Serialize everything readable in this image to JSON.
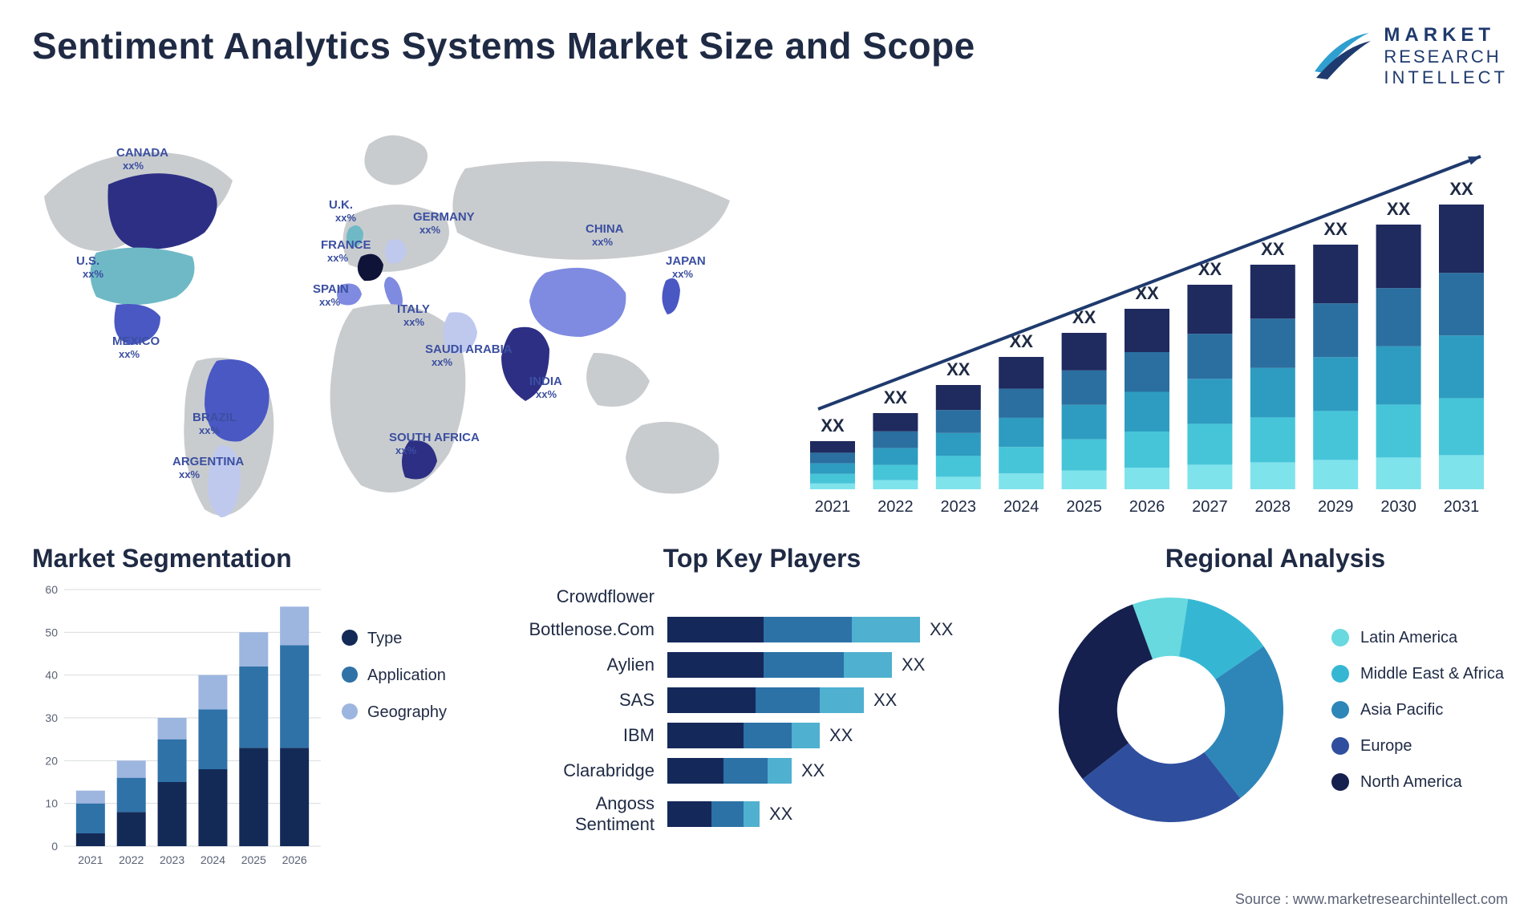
{
  "title": "Sentiment Analytics Systems Market Size and Scope",
  "brand": {
    "line1": "MARKET",
    "line2": "RESEARCH",
    "line3": "INTELLECT",
    "swoosh_top": "#2f9fd0",
    "swoosh_bot": "#1f3a6e"
  },
  "footer": "Source : www.marketresearchintellect.com",
  "colors": {
    "text": "#1f2a44",
    "map_label": "#3b4fa0"
  },
  "map": {
    "neutral_fill": "#c9cccf",
    "countries": [
      {
        "name": "CANADA",
        "sub": "xx%"
      },
      {
        "name": "U.S.",
        "sub": "xx%"
      },
      {
        "name": "MEXICO",
        "sub": "xx%"
      },
      {
        "name": "BRAZIL",
        "sub": "xx%"
      },
      {
        "name": "ARGENTINA",
        "sub": "xx%"
      },
      {
        "name": "U.K.",
        "sub": "xx%"
      },
      {
        "name": "FRANCE",
        "sub": "xx%"
      },
      {
        "name": "SPAIN",
        "sub": "xx%"
      },
      {
        "name": "GERMANY",
        "sub": "xx%"
      },
      {
        "name": "ITALY",
        "sub": "xx%"
      },
      {
        "name": "SAUDI ARABIA",
        "sub": "xx%"
      },
      {
        "name": "SOUTH AFRICA",
        "sub": "xx%"
      },
      {
        "name": "CHINA",
        "sub": "xx%"
      },
      {
        "name": "INDIA",
        "sub": "xx%"
      },
      {
        "name": "JAPAN",
        "sub": "xx%"
      }
    ],
    "highlight_colors": {
      "dark": "#2d2f85",
      "mid": "#4a58c4",
      "light": "#7f8be0",
      "teal": "#6fb9c6",
      "pale": "#bfc9ee"
    }
  },
  "growth_chart": {
    "type": "stacked-bar-with-trend",
    "years": [
      "2021",
      "2022",
      "2023",
      "2024",
      "2025",
      "2026",
      "2027",
      "2028",
      "2029",
      "2030",
      "2031"
    ],
    "value_label": "XX",
    "heights": [
      60,
      95,
      130,
      165,
      195,
      225,
      255,
      280,
      305,
      330,
      355
    ],
    "stack_colors": [
      "#7fe3ec",
      "#46c5d9",
      "#2e9cc0",
      "#2a6fa0",
      "#1f2a5f"
    ],
    "stack_props": [
      0.12,
      0.2,
      0.22,
      0.22,
      0.24
    ],
    "arrow_color": "#1f3a6e",
    "year_fontsize": 20,
    "value_fontsize": 22
  },
  "segmentation": {
    "title": "Market Segmentation",
    "type": "stacked-bar",
    "years": [
      "2021",
      "2022",
      "2023",
      "2024",
      "2025",
      "2026"
    ],
    "y_max": 60,
    "y_tick": 10,
    "totals": [
      13,
      20,
      30,
      40,
      50,
      56
    ],
    "series": [
      {
        "name": "Type",
        "color": "#132a57",
        "values": [
          3,
          8,
          15,
          18,
          23,
          23
        ]
      },
      {
        "name": "Application",
        "color": "#2e72a8",
        "values": [
          7,
          8,
          10,
          14,
          19,
          24
        ]
      },
      {
        "name": "Geography",
        "color": "#9db6e0",
        "values": [
          3,
          4,
          5,
          8,
          8,
          9
        ]
      }
    ],
    "grid_color": "#d9dbde",
    "axis_fontsize": 14,
    "legend_fontsize": 20
  },
  "players": {
    "title": "Top Key Players",
    "type": "stacked-horizontal-bar",
    "value_label": "XX",
    "colors": [
      "#14285a",
      "#2c72a6",
      "#4fb0cf"
    ],
    "rows": [
      {
        "name": "Crowdflower",
        "segs": [
          0,
          0,
          0
        ]
      },
      {
        "name": "Bottlenose.Com",
        "segs": [
          120,
          110,
          85
        ]
      },
      {
        "name": "Aylien",
        "segs": [
          120,
          100,
          60
        ]
      },
      {
        "name": "SAS",
        "segs": [
          110,
          80,
          55
        ]
      },
      {
        "name": "IBM",
        "segs": [
          95,
          60,
          35
        ]
      },
      {
        "name": "Clarabridge",
        "segs": [
          70,
          55,
          30
        ]
      },
      {
        "name": "Angoss Sentiment",
        "segs": [
          55,
          40,
          20
        ]
      }
    ]
  },
  "regional": {
    "title": "Regional Analysis",
    "type": "donut",
    "slices": [
      {
        "name": "Latin America",
        "color": "#67d9df",
        "value": 8
      },
      {
        "name": "Middle East & Africa",
        "color": "#35b7d4",
        "value": 13
      },
      {
        "name": "Asia Pacific",
        "color": "#2e86b8",
        "value": 24
      },
      {
        "name": "Europe",
        "color": "#2f4f9e",
        "value": 25
      },
      {
        "name": "North America",
        "color": "#16204e",
        "value": 30
      }
    ],
    "inner_ratio": 0.48
  }
}
